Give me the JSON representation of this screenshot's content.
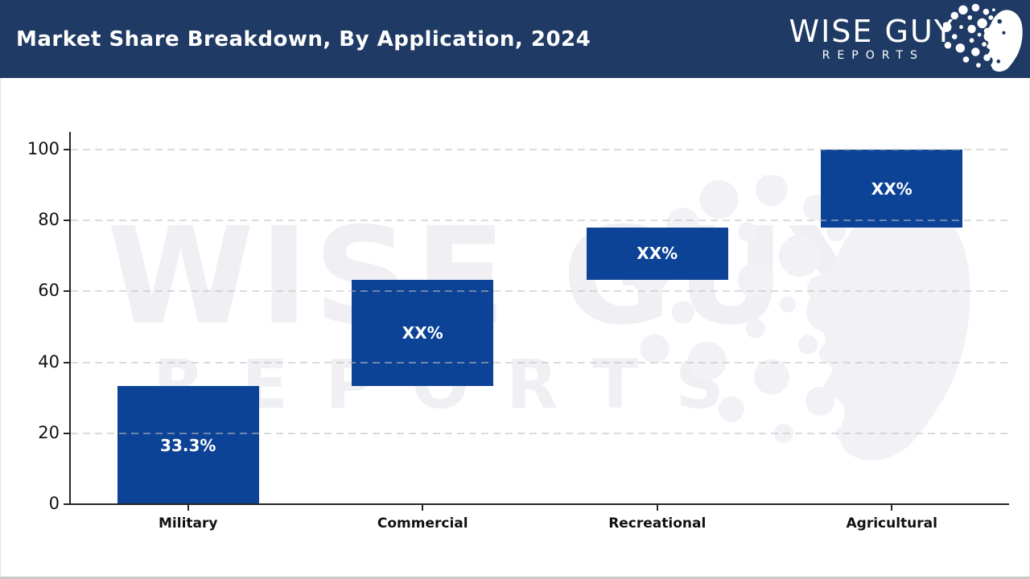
{
  "header": {
    "title": "Market Share Breakdown, By Application, 2024"
  },
  "brand": {
    "name": "WISE GUY",
    "sub": "REPORTS"
  },
  "watermark": {
    "line1": "WISE GUY",
    "line2": "REPORTS"
  },
  "chart_data": {
    "type": "bar",
    "subtype": "waterfall-floating-bars",
    "title": "Market Share Breakdown, By Application, 2024",
    "categories": [
      "Military",
      "Commercial",
      "Recreational",
      "Agricultural"
    ],
    "segments": [
      {
        "category": "Military",
        "start": 0,
        "end": 33.3,
        "label": "33.3%"
      },
      {
        "category": "Commercial",
        "start": 33.3,
        "end": 63.3,
        "label": "XX%"
      },
      {
        "category": "Recreational",
        "start": 63.3,
        "end": 78,
        "label": "XX%"
      },
      {
        "category": "Agricultural",
        "start": 78,
        "end": 100,
        "label": "XX%"
      }
    ],
    "yticks": [
      0,
      20,
      40,
      60,
      80,
      100
    ],
    "ylim": [
      0,
      100
    ],
    "xlabel": "",
    "ylabel": "",
    "grid": "horizontal-dashed-over-bars",
    "legend": "none",
    "colors": {
      "bar": "#0d4396",
      "header_bg": "#1f3a64",
      "grid": "#dbdbdb",
      "axis": "#262626",
      "bar_label": "#ffffff",
      "tick_label": "#111111",
      "watermark": "#f0f0f4"
    }
  }
}
